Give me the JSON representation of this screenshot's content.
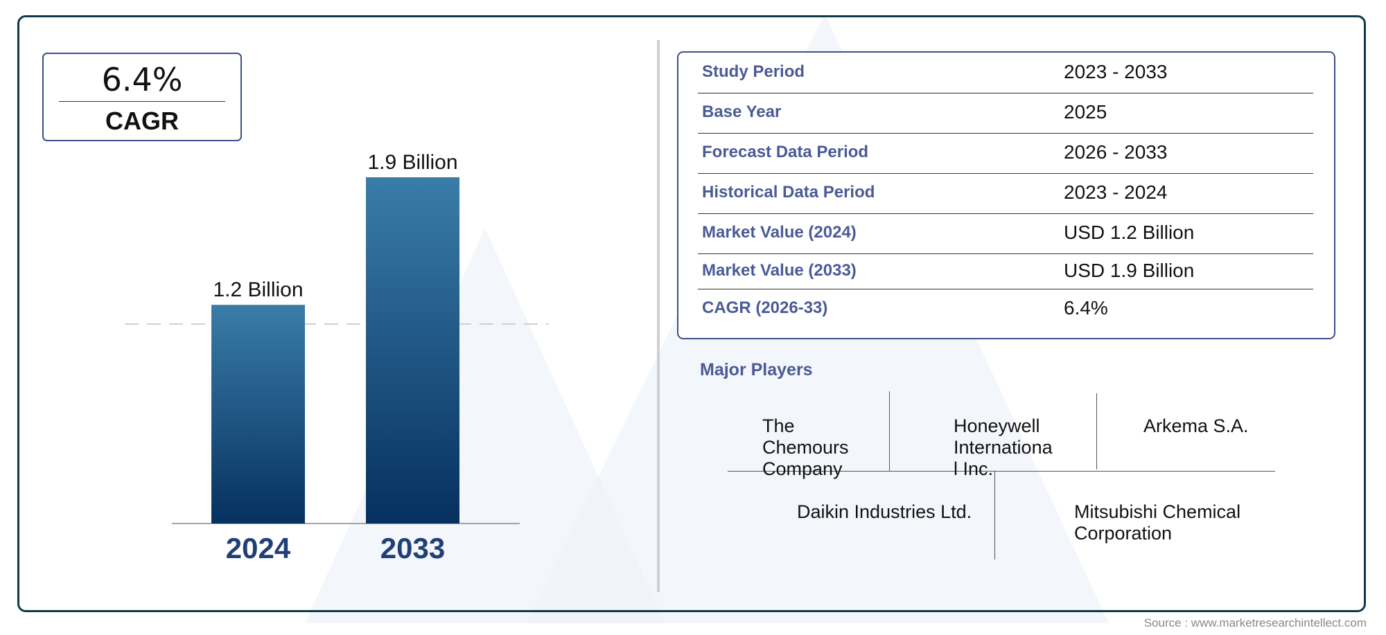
{
  "kpi": {
    "value": "6.4%",
    "label": "CAGR"
  },
  "chart_data": {
    "type": "bar",
    "categories": [
      "2024",
      "2033"
    ],
    "values": [
      1.2,
      1.9
    ],
    "value_labels": [
      "1.2 Billion",
      "1.9 Billion"
    ],
    "colors": {
      "bar_top": "#3a7da8",
      "bar_bottom": "#06305f",
      "year_label": "#1f3f78"
    }
  },
  "info_table": [
    {
      "key": "Study Period",
      "value": "2023 - 2033"
    },
    {
      "key": "Base Year",
      "value": "2025"
    },
    {
      "key": "Forecast Data Period",
      "value": "2026 - 2033"
    },
    {
      "key": "Historical Data Period",
      "value": "2023 - 2024"
    },
    {
      "key": "Market Value (2024)",
      "value": "USD 1.2 Billion"
    },
    {
      "key": "Market Value (2033)",
      "value": "USD 1.9 Billion"
    },
    {
      "key": "CAGR (2026-33)",
      "value": "6.4%"
    }
  ],
  "players": {
    "title": "Major Players",
    "names": [
      "The\nChemours\nCompany",
      "Honeywell\nInternationa\nl Inc.",
      "Arkema S.A.",
      "Daikin Industries Ltd.",
      "Mitsubishi Chemical\nCorporation"
    ]
  },
  "source": "Source : www.marketresearchintellect.com"
}
